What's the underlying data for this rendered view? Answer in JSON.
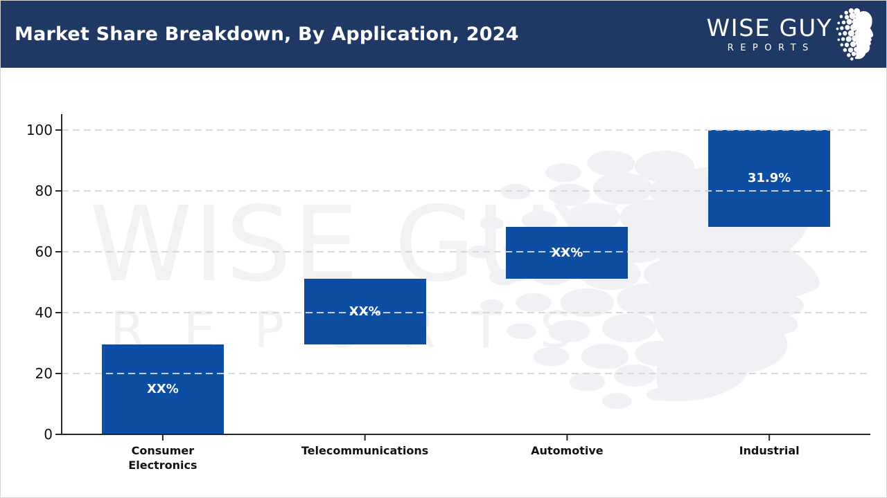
{
  "header": {
    "title": "Market Share Breakdown, By Application, 2024",
    "logo": {
      "brand": "WISE GUY",
      "sub": "REPORTS"
    }
  },
  "watermark": {
    "brand": "WISE GUY",
    "sub": "REPORTS"
  },
  "chart_data": {
    "type": "bar",
    "subtype": "floating-segment-waterfall",
    "title": "Market Share Breakdown, By Application, 2024",
    "categories": [
      "Consumer\nElectronics",
      "Telecommunications",
      "Automotive",
      "Industrial"
    ],
    "bars": [
      {
        "category": "Consumer Electronics",
        "start": 0,
        "end": 29.5,
        "value": 29.5,
        "label": "XX%"
      },
      {
        "category": "Telecommunications",
        "start": 29.5,
        "end": 51.1,
        "value": 21.6,
        "label": "XX%"
      },
      {
        "category": "Automotive",
        "start": 51.1,
        "end": 68.1,
        "value": 17.0,
        "label": "XX%"
      },
      {
        "category": "Industrial",
        "start": 68.1,
        "end": 100,
        "value": 31.9,
        "label": "31.9%"
      }
    ],
    "xlabel": "",
    "ylabel": "",
    "ylim": [
      0,
      100
    ],
    "yticks": [
      0,
      20,
      40,
      60,
      80,
      100
    ],
    "grid": "horizontal-dashed",
    "legend": "none",
    "bar_color": "#0d4da2",
    "bar_label_color": "#ffffff"
  },
  "colors": {
    "header_bg": "#203864",
    "bar": "#0d4da2",
    "gridline": "#d8d8d8",
    "axis": "#262626",
    "watermark": "#f2f2f4",
    "page_bg": "#ffffff"
  }
}
